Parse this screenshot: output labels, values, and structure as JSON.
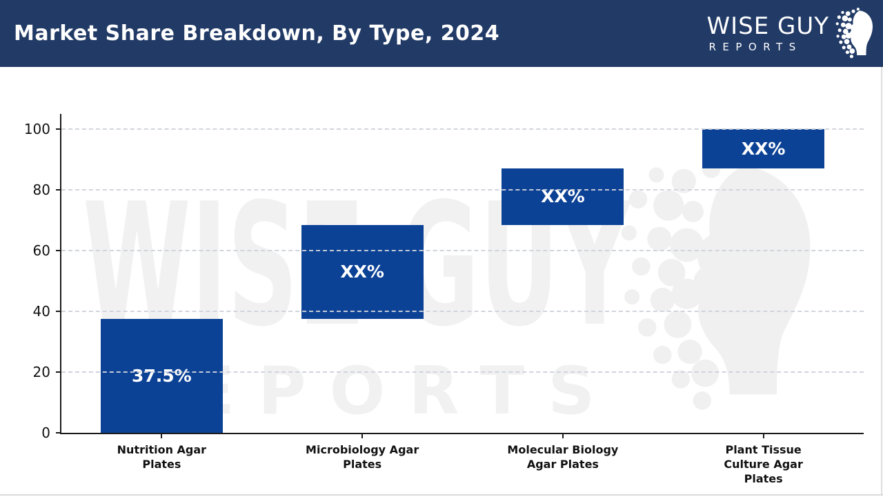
{
  "header": {
    "bg_color": "#213a66",
    "title": "Market Share Breakdown, By Type, 2024",
    "logo": {
      "brand": "WISE GUY",
      "sub": "REPORTS"
    }
  },
  "watermark": {
    "brand": "WISE GUY",
    "sub": "REPORTS"
  },
  "chart_data": {
    "type": "bar",
    "subtype": "waterfall-breakdown",
    "title": "Market Share Breakdown, By Type, 2024",
    "categories": [
      "Nutrition Agar\nPlates",
      "Microbiology Agar\nPlates",
      "Molecular Biology\nAgar Plates",
      "Plant Tissue\nCulture Agar\nPlates"
    ],
    "segments": [
      {
        "category": "Nutrition Agar Plates",
        "start": 0,
        "end": 37.5,
        "label": "37.5%"
      },
      {
        "category": "Microbiology Agar Plates",
        "start": 37.5,
        "end": 68.5,
        "label": "XX%"
      },
      {
        "category": "Molecular Biology Agar Plates",
        "start": 68.5,
        "end": 87,
        "label": "XX%"
      },
      {
        "category": "Plant Tissue Culture Agar Plates",
        "start": 87,
        "end": 100,
        "label": "XX%"
      }
    ],
    "yticks": [
      0,
      20,
      40,
      60,
      80,
      100
    ],
    "ylim": [
      0,
      105
    ],
    "xlabel": "",
    "ylabel": "",
    "grid": "horizontal-dashed-drawn-above-bars",
    "legend": "none",
    "bar_color": "#0c4296",
    "bar_label_color": "#ffffff",
    "axis_color": "#1a1a1a",
    "gridline_color": "#d5d9de"
  }
}
